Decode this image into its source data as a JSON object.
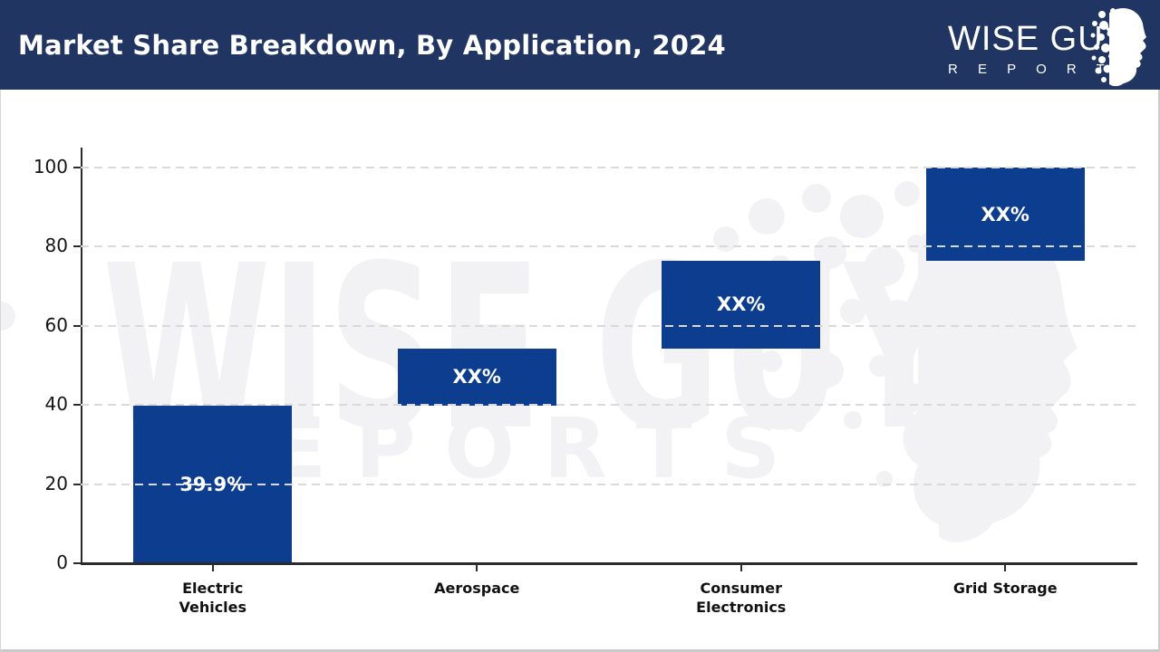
{
  "header": {
    "title": "Market Share Breakdown, By Application, 2024",
    "bg_color": "#203561",
    "logo_line1": "WISE GUY",
    "logo_line2": "R E P O R T S"
  },
  "watermark": {
    "line1": "WISE GUY",
    "line2": "R E P O R T S"
  },
  "chart_data": {
    "type": "bar",
    "variant": "waterfall",
    "title": "Market Share Breakdown, By Application, 2024",
    "xlabel": "",
    "ylabel": "",
    "categories": [
      "Electric Vehicles",
      "Aerospace",
      "Consumer Electronics",
      "Grid Storage"
    ],
    "segments": [
      {
        "category": "Electric Vehicles",
        "start": 0,
        "end": 39.9,
        "label": "39.9%"
      },
      {
        "category": "Aerospace",
        "start": 39.9,
        "end": 54.3,
        "label": "XX%"
      },
      {
        "category": "Consumer Electronics",
        "start": 54.3,
        "end": 76.4,
        "label": "XX%"
      },
      {
        "category": "Grid Storage",
        "start": 76.4,
        "end": 100,
        "label": "XX%"
      }
    ],
    "values_delta": [
      39.9,
      14.4,
      22.1,
      23.6
    ],
    "yticks": [
      0,
      20,
      40,
      60,
      80,
      100
    ],
    "ylim": [
      0,
      105
    ],
    "grid": "horizontal-dashed",
    "legend": false,
    "bar_color": "#0c3d8e",
    "bar_label_color": "#ffffff",
    "axis_color": "#2b2b2b",
    "grid_color": "#d9d9d9",
    "watermark_color": "#f2f2f5"
  }
}
